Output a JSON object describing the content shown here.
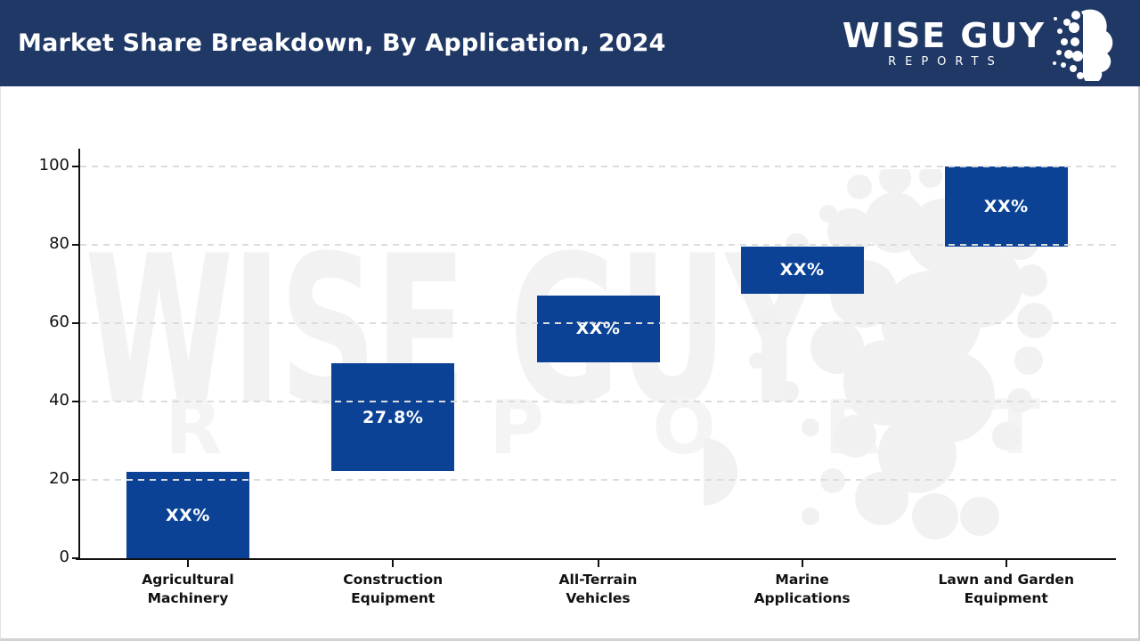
{
  "header": {
    "title": "Market Share Breakdown, By Application, 2024",
    "logo": {
      "line1": "WISE GUY",
      "line2": "REPORTS"
    }
  },
  "watermark": {
    "line1": "WISE GUY",
    "line2": "REPORTS"
  },
  "chart_data": {
    "type": "bar",
    "subtype": "waterfall-floating-bars",
    "title": "Market Share Breakdown, By Application, 2024",
    "categories": [
      "Agricultural Machinery",
      "Construction Equipment",
      "All-Terrain Vehicles",
      "Marine Applications",
      "Lawn and Garden Equipment"
    ],
    "category_lines": [
      [
        "Agricultural",
        "Machinery"
      ],
      [
        "Construction",
        "Equipment"
      ],
      [
        "All-Terrain",
        "Vehicles"
      ],
      [
        "Marine",
        "Applications"
      ],
      [
        "Lawn and Garden",
        "Equipment"
      ]
    ],
    "series": [
      {
        "name": "Agricultural Machinery",
        "start": 0,
        "end": 22,
        "label": "XX%"
      },
      {
        "name": "Construction Equipment",
        "start": 22.2,
        "end": 49.8,
        "label": "27.8%"
      },
      {
        "name": "All-Terrain Vehicles",
        "start": 50,
        "end": 67.1,
        "label": "XX%"
      },
      {
        "name": "Marine Applications",
        "start": 67.5,
        "end": 79.6,
        "label": "XX%"
      },
      {
        "name": "Lawn and Garden Equipment",
        "start": 79.6,
        "end": 100,
        "label": "XX%"
      }
    ],
    "yticks": [
      0,
      20,
      40,
      60,
      80,
      100
    ],
    "ylim": [
      0,
      104.3
    ],
    "xlabel": "",
    "ylabel": "",
    "grid": "horizontal-dashed",
    "legend": "none",
    "bar_color": "#0b4296",
    "bar_label_color": "#ffffff"
  },
  "colors": {
    "header_bg": "#1f3865",
    "bar": "#0b4296",
    "axis": "#111111",
    "grid": "#dcdcdc",
    "watermark": "#f2f2f2"
  }
}
